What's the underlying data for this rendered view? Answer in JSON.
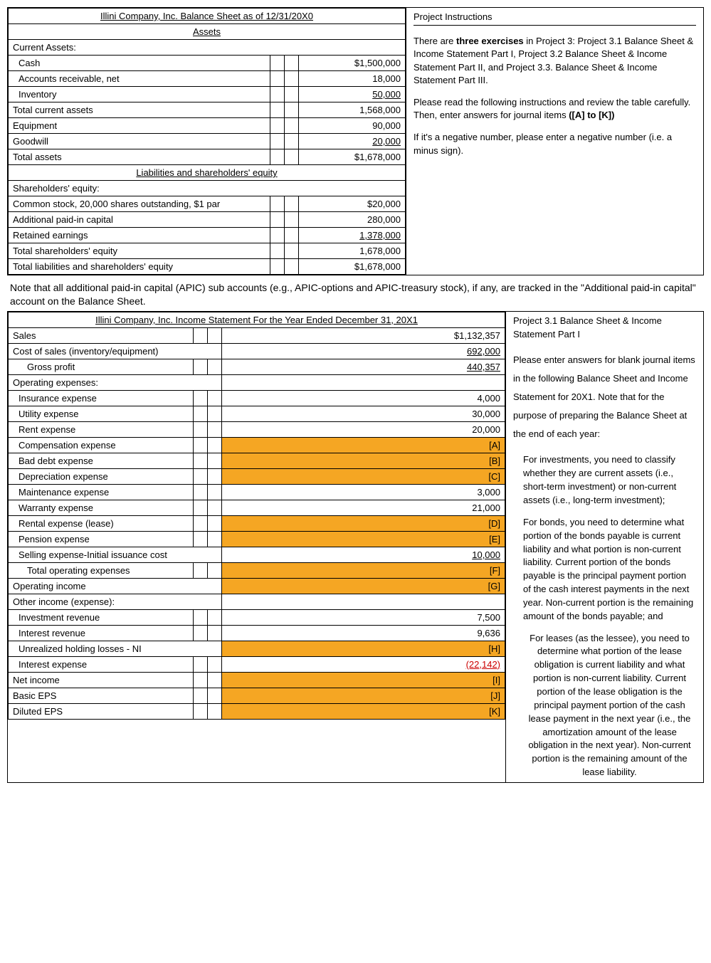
{
  "balance_sheet": {
    "title": "Illini Company, Inc. Balance Sheet as of 12/31/20X0",
    "assets_header": "Assets",
    "current_assets_label": "Current Assets:",
    "rows": [
      {
        "label": "Cash",
        "value": "$1,500,000",
        "indent": 1,
        "underline": false
      },
      {
        "label": "Accounts receivable, net",
        "value": "18,000",
        "indent": 1,
        "underline": false
      },
      {
        "label": "Inventory",
        "value": "50,000",
        "indent": 1,
        "underline": true
      },
      {
        "label": "Total current assets",
        "value": "1,568,000",
        "indent": 0,
        "underline": false
      },
      {
        "label": "Equipment",
        "value": "90,000",
        "indent": 0,
        "underline": false
      },
      {
        "label": "Goodwill",
        "value": "20,000",
        "indent": 0,
        "underline": true
      },
      {
        "label": "Total assets",
        "value": "$1,678,000",
        "indent": 0,
        "underline": false
      }
    ],
    "liab_header": "Liabilities and shareholders' equity",
    "se_label": "Shareholders' equity:",
    "se_rows": [
      {
        "label": "Common stock, 20,000 shares outstanding, $1 par",
        "value": "$20,000",
        "underline": false
      },
      {
        "label": "Additional paid-in capital",
        "value": "280,000",
        "underline": false
      },
      {
        "label": "Retained earnings",
        "value": "1,378,000",
        "underline": true
      },
      {
        "label": "Total shareholders' equity",
        "value": "1,678,000",
        "underline": false
      },
      {
        "label": "Total liabilities and shareholders' equity",
        "value": "$1,678,000",
        "underline": false
      }
    ]
  },
  "instructions1": {
    "title": "Project Instructions",
    "p1a": "There are ",
    "p1b": "three exercises",
    "p1c": " in Project 3: Project 3.1 Balance Sheet & Income Statement Part I, Project 3.2 Balance Sheet & Income Statement Part II, and Project 3.3. Balance Sheet & Income Statement Part III.",
    "p2a": "Please read the following instructions and review the table carefully. Then, enter answers for journal items ",
    "p2b": "([A] to [K])",
    "p3": "If it's a negative number, please enter a negative number (i.e. a minus sign)."
  },
  "note": "Note that all additional paid-in capital (APIC) sub accounts (e.g., APIC-options and APIC-treasury stock), if any, are tracked in the \"Additional paid-in capital\" account on the Balance Sheet.",
  "income_stmt": {
    "title": "Illini Company, Inc. Income Statement For the Year Ended December 31, 20X1",
    "rows": [
      {
        "label": "Sales",
        "value": "$1,132,357",
        "hl": false,
        "indent": 0,
        "underline": false,
        "wide": false
      },
      {
        "label": "Cost of sales (inventory/equipment)",
        "value": "692,000",
        "hl": false,
        "indent": 0,
        "underline": true,
        "wide": true
      },
      {
        "label": "Gross profit",
        "value": "440,357",
        "hl": false,
        "indent": 2,
        "underline": true,
        "wide": false
      },
      {
        "label": "Operating expenses:",
        "value": "",
        "hl": false,
        "indent": 0,
        "underline": false,
        "wide": true
      },
      {
        "label": "Insurance expense",
        "value": "4,000",
        "hl": false,
        "indent": 1,
        "underline": false,
        "wide": false
      },
      {
        "label": "Utility expense",
        "value": "30,000",
        "hl": false,
        "indent": 1,
        "underline": false,
        "wide": false
      },
      {
        "label": "Rent expense",
        "value": "20,000",
        "hl": false,
        "indent": 1,
        "underline": false,
        "wide": false
      },
      {
        "label": "Compensation expense",
        "value": "[A]",
        "hl": true,
        "indent": 1,
        "underline": false,
        "wide": false
      },
      {
        "label": "Bad debt expense",
        "value": "[B]",
        "hl": true,
        "indent": 1,
        "underline": false,
        "wide": false
      },
      {
        "label": "Depreciation expense",
        "value": "[C]",
        "hl": true,
        "indent": 1,
        "underline": false,
        "wide": false
      },
      {
        "label": "Maintenance expense",
        "value": "3,000",
        "hl": false,
        "indent": 1,
        "underline": false,
        "wide": false
      },
      {
        "label": "Warranty expense",
        "value": "21,000",
        "hl": false,
        "indent": 1,
        "underline": false,
        "wide": false
      },
      {
        "label": "Rental expense (lease)",
        "value": "[D]",
        "hl": true,
        "indent": 1,
        "underline": false,
        "wide": false
      },
      {
        "label": "Pension expense",
        "value": "[E]",
        "hl": true,
        "indent": 1,
        "underline": false,
        "wide": false
      },
      {
        "label": "Selling expense-Initial issuance cost",
        "value": "10,000",
        "hl": false,
        "indent": 1,
        "underline": true,
        "wide": true
      },
      {
        "label": "Total operating expenses",
        "value": "[F]",
        "hl": true,
        "indent": 2,
        "underline": false,
        "wide": false
      },
      {
        "label": "Operating income",
        "value": "[G]",
        "hl": true,
        "indent": 0,
        "underline": false,
        "wide": true
      },
      {
        "label": "Other income (expense):",
        "value": "",
        "hl": false,
        "indent": 0,
        "underline": false,
        "wide": true
      },
      {
        "label": "Investment revenue",
        "value": "7,500",
        "hl": false,
        "indent": 1,
        "underline": false,
        "wide": false
      },
      {
        "label": "Interest revenue",
        "value": "9,636",
        "hl": false,
        "indent": 1,
        "underline": false,
        "wide": false
      },
      {
        "label": "Unrealized holding losses - NI",
        "value": "[H]",
        "hl": true,
        "indent": 1,
        "underline": false,
        "wide": true
      },
      {
        "label": "Interest expense",
        "value": "(22,142)",
        "hl": false,
        "indent": 1,
        "underline": true,
        "wide": false,
        "neg": true
      },
      {
        "label": "Net income",
        "value": "[I]",
        "hl": true,
        "indent": 0,
        "underline": false,
        "wide": false
      },
      {
        "label": "Basic EPS",
        "value": "[J]",
        "hl": true,
        "indent": 0,
        "underline": false,
        "wide": false
      },
      {
        "label": "Diluted EPS",
        "value": "[K]",
        "hl": true,
        "indent": 0,
        "underline": false,
        "wide": false
      }
    ]
  },
  "instructions2": {
    "title": "Project 3.1 Balance Sheet & Income Statement Part I",
    "p1": "Please enter answers for blank journal items in the following Balance Sheet and Income Statement for 20X1. Note that for the purpose of preparing the Balance Sheet at the end of each year:",
    "b1": "For investments, you need to classify whether they are current assets (i.e., short-term investment) or non-current assets (i.e., long-term investment);",
    "b2": "For bonds, you need to determine what portion of the bonds payable is current liability and what portion is non-current liability. Current portion of the bonds payable is the principal payment portion of the cash interest payments in the next year. Non-current portion is the remaining amount of the bonds payable; and",
    "b3": "For leases (as the lessee), you need to determine what portion of the lease obligation is current liability and what portion is non-current liability. Current portion of the lease obligation is the principal payment portion of the cash lease payment in the next year (i.e., the amortization amount of the lease obligation in the next year). Non-current portion is the remaining amount of the lease liability."
  },
  "colors": {
    "highlight": "#f5a623",
    "border": "#000000",
    "negative": "#cc0000"
  }
}
